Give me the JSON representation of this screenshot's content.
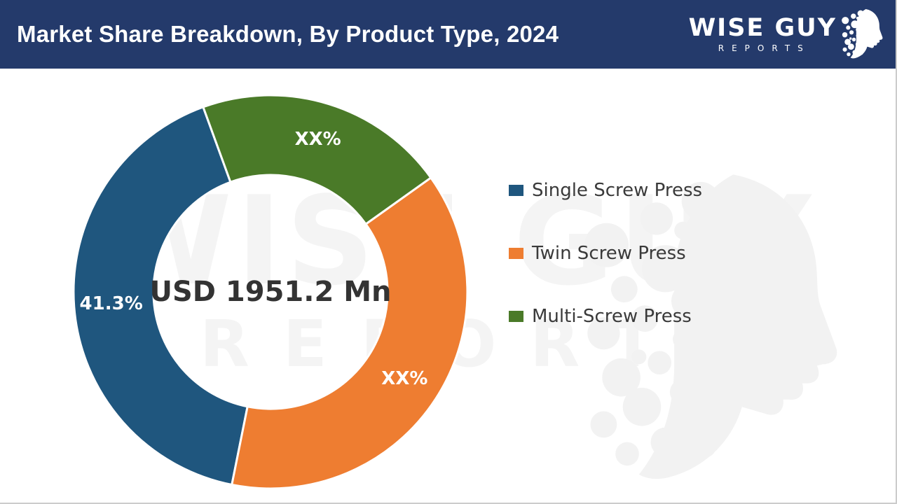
{
  "header": {
    "title": "Market Share Breakdown, By Product Type, 2024",
    "logo": {
      "wordmark": "WISE GUY",
      "sub": "REPORTS"
    }
  },
  "watermark": {
    "line1": "WISE GUY",
    "line2": "REPORTS"
  },
  "chart_data": {
    "type": "pie",
    "subtype": "donut",
    "title": "Market Share Breakdown, By Product Type, 2024",
    "center_label": "USD 1951.2 Mn",
    "start_angle_deg": 110,
    "direction": "counterclockwise",
    "inner_radius_ratio": 0.595,
    "legend_position": "right",
    "series": [
      {
        "name": "Single Screw Press",
        "value_pct": 41.3,
        "label": "41.3%",
        "color": "#1F567E"
      },
      {
        "name": "Twin Screw Press",
        "value_pct": 38.0,
        "label": "XX%",
        "color": "#EE7D31"
      },
      {
        "name": "Multi-Screw Press",
        "value_pct": 20.7,
        "label": "XX%",
        "color": "#4A7A28"
      }
    ]
  },
  "colors": {
    "header_bg": "#243A6B",
    "header_text": "#FFFFFF",
    "center_text": "#333333",
    "legend_text": "#3A3A3A",
    "slice_label_text": "#FFFFFF",
    "watermark": "#F4F4F4",
    "border": "#CCCCCC",
    "background": "#FFFFFF"
  }
}
